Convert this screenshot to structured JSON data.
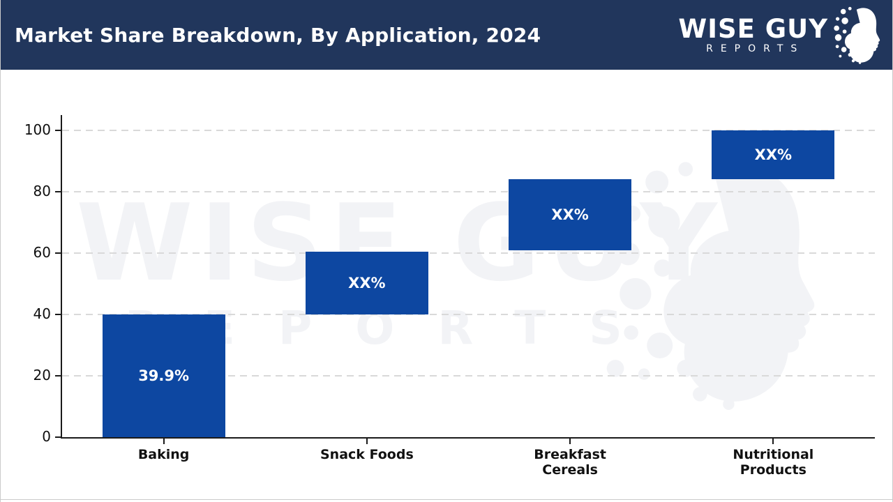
{
  "header": {
    "title": "Market Share Breakdown, By Application, 2024",
    "logo": {
      "line1": "WISE GUY",
      "line2": "REPORTS"
    }
  },
  "watermark": {
    "line1": "WISE GUY",
    "line2": "REPORTS"
  },
  "colors": {
    "header_bg": "#21365c",
    "bar": "#0d47a1",
    "grid": "#d9d9d9",
    "axis": "#1a1a1a",
    "bar_label": "#ffffff",
    "watermark": "#f2f3f6"
  },
  "chart_data": {
    "type": "bar",
    "subtype": "waterfall",
    "title": "Market Share Breakdown, By Application, 2024",
    "xlabel": "",
    "ylabel": "",
    "ylim": [
      0,
      105
    ],
    "yticks": [
      0,
      20,
      40,
      60,
      80,
      100
    ],
    "grid": "dashed horizontal",
    "legend": "none",
    "categories": [
      "Baking",
      "Snack Foods",
      "Breakfast Cereals",
      "Nutritional Products"
    ],
    "segments": [
      {
        "category": "Baking",
        "start": 0,
        "end": 39.9,
        "label": "39.9%"
      },
      {
        "category": "Snack Foods",
        "start": 40,
        "end": 60.5,
        "label": "XX%"
      },
      {
        "category": "Breakfast Cereals",
        "start": 61,
        "end": 84,
        "label": "XX%"
      },
      {
        "category": "Nutritional Products",
        "start": 84,
        "end": 100,
        "label": "XX%"
      }
    ]
  }
}
